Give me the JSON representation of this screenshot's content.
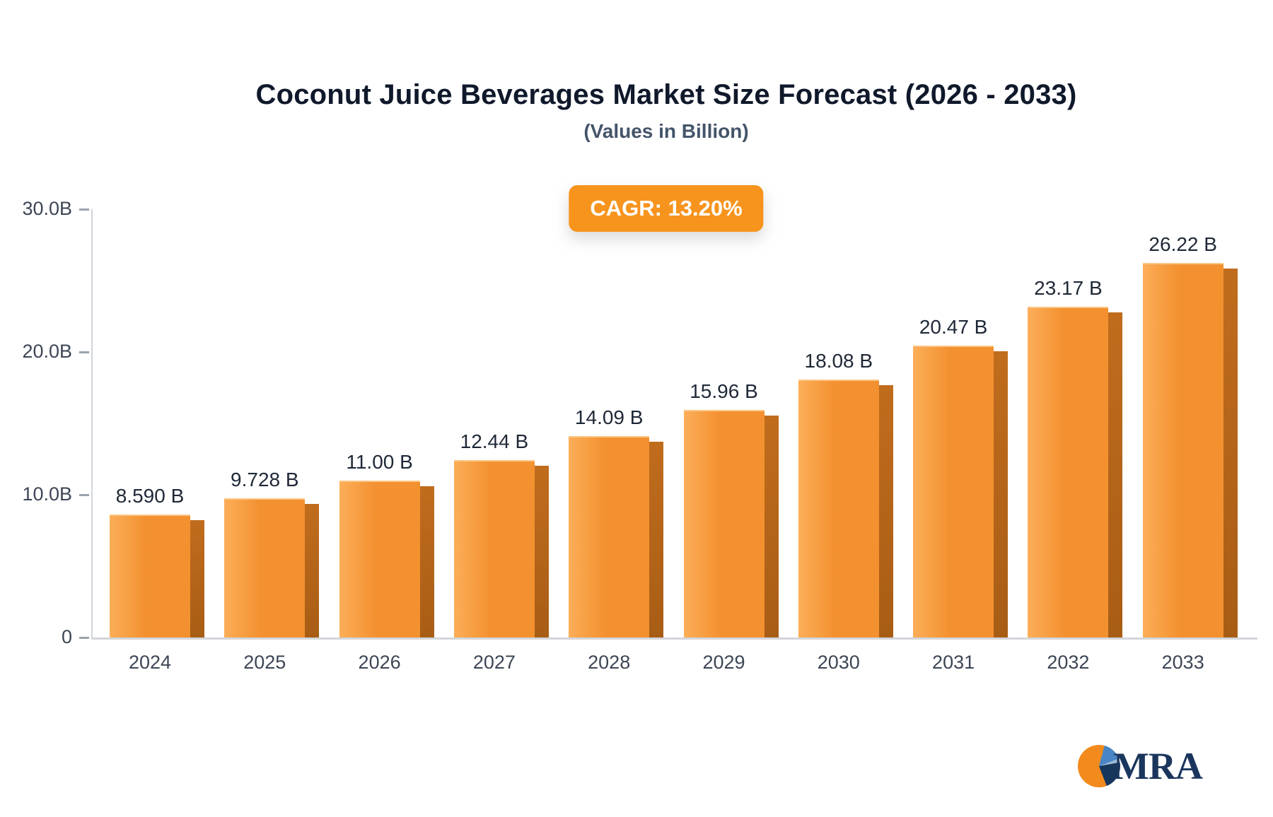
{
  "header": {
    "title": "Coconut Juice Beverages Market Size Forecast (2026 - 2033)",
    "subtitle": "(Values in Billion)",
    "cagr_badge": "CAGR: 13.20%"
  },
  "chart_data": {
    "type": "bar",
    "title": "Coconut Juice Beverages Market Size Forecast (2026 - 2033)",
    "subtitle": "(Values in Billion)",
    "cagr_percent": 13.2,
    "unit": "Billion",
    "categories": [
      "2024",
      "2025",
      "2026",
      "2027",
      "2028",
      "2029",
      "2030",
      "2031",
      "2032",
      "2033"
    ],
    "values": [
      8.59,
      9.728,
      11.0,
      12.44,
      14.09,
      15.96,
      18.08,
      20.47,
      23.17,
      26.22
    ],
    "value_labels": [
      "8.590 B",
      "9.728 B",
      "11.00 B",
      "12.44 B",
      "14.09 B",
      "15.96 B",
      "18.08 B",
      "20.47 B",
      "23.17 B",
      "26.22 B"
    ],
    "xlabel": "",
    "ylabel": "",
    "ylim": [
      0,
      30
    ],
    "yticks": [
      {
        "value": 0,
        "label": "0"
      },
      {
        "value": 10,
        "label": "10.0B"
      },
      {
        "value": 20,
        "label": "20.0B"
      },
      {
        "value": 30,
        "label": "30.0B"
      }
    ],
    "grid": false,
    "legend": "none",
    "colors": {
      "bar_face_light": "#fcae59",
      "bar_face": "#f39130",
      "bar_side_top": "#c06c1d",
      "bar_side_bottom": "#a85d15",
      "badge_bg": "#f7941d",
      "axis_line": "#d2d6db",
      "tick_dash": "#9aa2ad",
      "tick_text": "#3d4656",
      "value_text": "#1f2837"
    }
  },
  "branding": {
    "logo_text": "MRA"
  }
}
